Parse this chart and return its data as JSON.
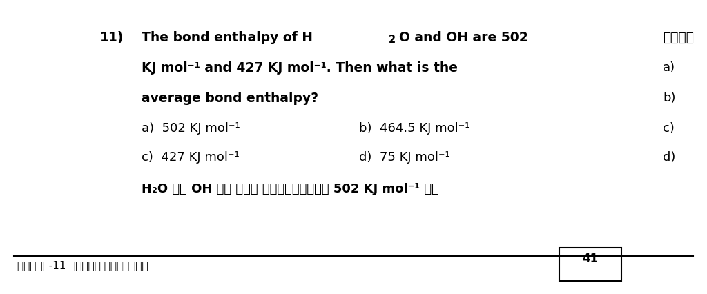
{
  "bg_color": "#ffffff",
  "question_number": "11)",
  "question_line1": "The bond enthalpy of H",
  "question_line1_sub": "2",
  "question_line1_cont": "O and OH are 502",
  "question_line2": "KJ mol⁻¹ and 427 KJ mol⁻¹. Then what is the",
  "question_line3": "average bond enthalpy?",
  "option_a_label": "a)",
  "option_a_text": "502 KJ mol⁻¹",
  "option_b_label": "b)",
  "option_b_text": "464.5 KJ mol⁻¹",
  "option_c_label": "c)",
  "option_c_text": "427 KJ mol⁻¹",
  "option_d_label": "d)",
  "option_d_text": "75 KJ mol⁻¹",
  "hindi_line": "H₂O और OH की बंध एन्थैल्पी 502 KJ mol⁻¹ और",
  "footer_left": "कक्षा-11 रसायन विज्ञान",
  "footer_page": "41",
  "right_col": "सीमा",
  "right_a": "a)",
  "right_b": "b)",
  "right_c": "c)",
  "right_d": "d)",
  "text_color": "#000000",
  "line_color": "#000000"
}
